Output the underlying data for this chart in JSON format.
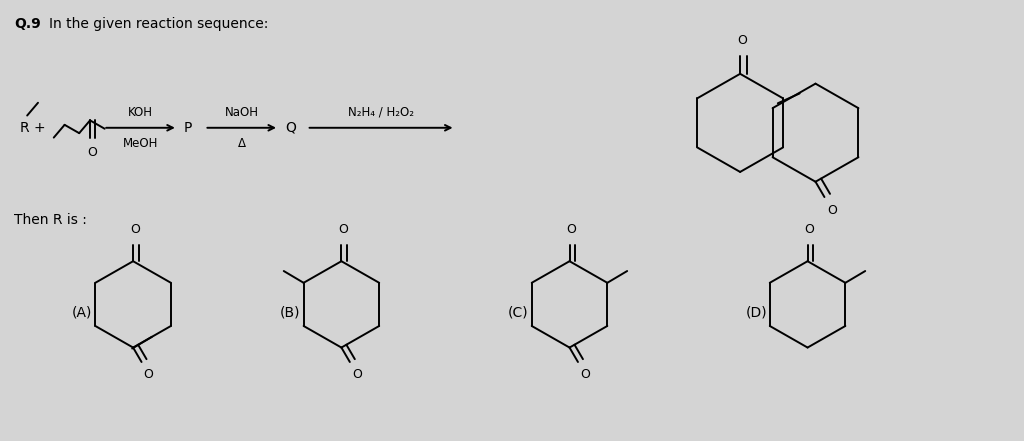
{
  "bg_color": "#d4d4d4",
  "title_text": "Q.9",
  "question_text": "In the given reaction sequence:",
  "then_r_text": "Then R is :",
  "arrow1_label_top": "KOH",
  "arrow1_label_bot": "MeOH",
  "arrow2_label_top": "NaOH",
  "arrow2_label_bot": "Δ",
  "arrow3_label": "N₂H₄ / H₂O₂",
  "option_labels": [
    "(A)",
    "(B)",
    "(C)",
    "(D)"
  ]
}
